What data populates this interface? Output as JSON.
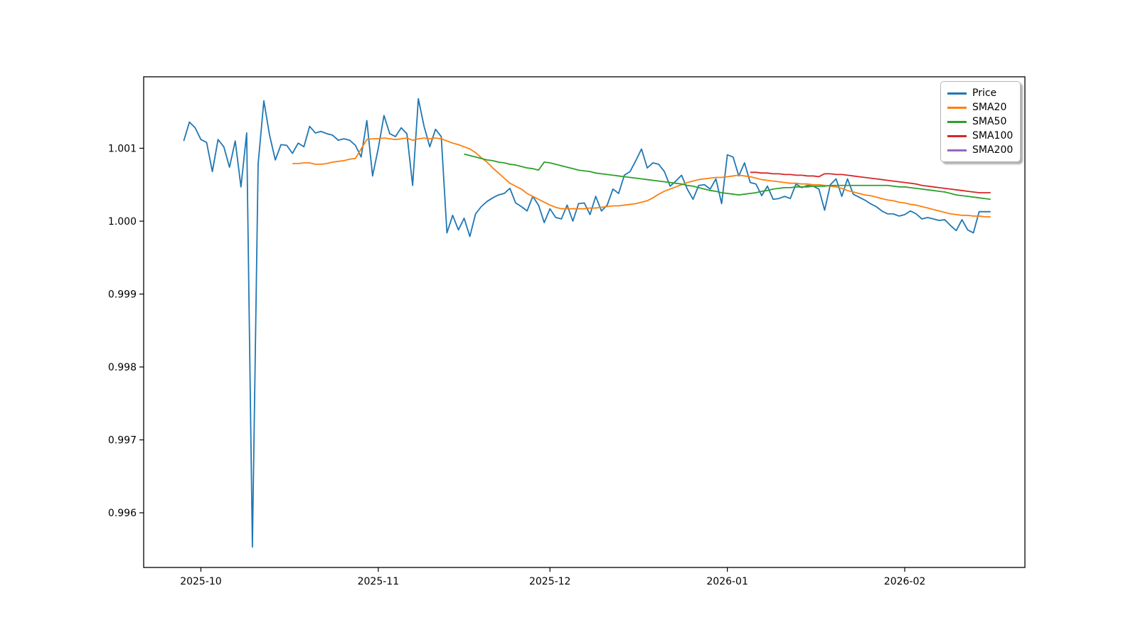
{
  "figure": {
    "background": "#ffffff",
    "title": ""
  },
  "chart_data": {
    "type": "line",
    "title": "",
    "xlabel": "",
    "ylabel": "",
    "grid": false,
    "x_axis": {
      "range": [
        "2025-09-21",
        "2026-02-22"
      ],
      "ticks": [
        {
          "label": "2025-10",
          "date": "2025-10-01"
        },
        {
          "label": "2025-11",
          "date": "2025-11-01"
        },
        {
          "label": "2025-12",
          "date": "2025-12-01"
        },
        {
          "label": "2026-01",
          "date": "2026-01-01"
        },
        {
          "label": "2026-02",
          "date": "2026-02-01"
        }
      ]
    },
    "y_axis": {
      "range": [
        0.99525,
        1.00198
      ],
      "ticks": [
        {
          "label": "0.996",
          "value": 0.996
        },
        {
          "label": "0.997",
          "value": 0.997
        },
        {
          "label": "0.998",
          "value": 0.998
        },
        {
          "label": "0.999",
          "value": 0.999
        },
        {
          "label": "1.000",
          "value": 1.0
        },
        {
          "label": "1.001",
          "value": 1.001
        }
      ]
    },
    "legend": {
      "position": "upper right"
    },
    "series": [
      {
        "name": "Price",
        "color": "#1f77b4",
        "start_date": "2025-09-28",
        "frequency": "daily",
        "values": [
          1.0011,
          1.00136,
          1.00128,
          1.00112,
          1.00108,
          1.00068,
          1.00112,
          1.00102,
          1.00074,
          1.0011,
          1.00047,
          1.00121,
          0.99553,
          1.00078,
          1.00165,
          1.00118,
          1.00084,
          1.00105,
          1.00104,
          1.00093,
          1.00107,
          1.00102,
          1.0013,
          1.00121,
          1.00123,
          1.0012,
          1.00118,
          1.00111,
          1.00113,
          1.00111,
          1.00104,
          1.00088,
          1.00138,
          1.00062,
          1.001,
          1.00145,
          1.0012,
          1.00116,
          1.00128,
          1.0012,
          1.00049,
          1.00168,
          1.0013,
          1.00102,
          1.00126,
          1.00116,
          0.99984,
          1.00008,
          0.99988,
          1.00004,
          0.99979,
          1.0001,
          1.0002,
          1.00027,
          1.00032,
          1.00036,
          1.00038,
          1.00045,
          1.00025,
          1.0002,
          1.00014,
          1.00034,
          1.00022,
          0.99998,
          1.00017,
          1.00005,
          1.00003,
          1.00022,
          1.0,
          1.00024,
          1.00025,
          1.00009,
          1.00034,
          1.00014,
          1.00022,
          1.00044,
          1.00038,
          1.00063,
          1.00068,
          1.00083,
          1.00099,
          1.00073,
          1.0008,
          1.00078,
          1.00068,
          1.00048,
          1.00055,
          1.00063,
          1.00044,
          1.0003,
          1.00049,
          1.0005,
          1.00044,
          1.00058,
          1.00024,
          1.00091,
          1.00088,
          1.00062,
          1.0008,
          1.00053,
          1.00051,
          1.00035,
          1.00048,
          1.0003,
          1.00031,
          1.00034,
          1.00031,
          1.00051,
          1.00046,
          1.00049,
          1.00048,
          1.00044,
          1.00015,
          1.0005,
          1.00058,
          1.00034,
          1.00058,
          1.00037,
          1.00033,
          1.00029,
          1.00024,
          1.0002,
          1.00014,
          1.0001,
          1.0001,
          1.00007,
          1.00009,
          1.00014,
          1.0001,
          1.00003,
          1.00005,
          1.00003,
          1.00001,
          1.00002,
          0.99994,
          0.99987,
          1.00002,
          0.99988,
          0.99984,
          1.00013,
          1.00013,
          1.00013
        ]
      },
      {
        "name": "SMA20",
        "color": "#ff7f0e",
        "start_date": "2025-10-17",
        "frequency": "daily",
        "values": [
          1.00079,
          1.00079,
          1.0008,
          1.0008,
          1.00078,
          1.00078,
          1.00079,
          1.00081,
          1.00082,
          1.00083,
          1.00085,
          1.00086,
          1.00099,
          1.00112,
          1.00113,
          1.00113,
          1.00114,
          1.00113,
          1.00112,
          1.00113,
          1.00114,
          1.00111,
          1.00113,
          1.00114,
          1.00113,
          1.00114,
          1.00113,
          1.0011,
          1.00107,
          1.00105,
          1.00102,
          1.00099,
          1.00094,
          1.00087,
          1.00081,
          1.00073,
          1.00066,
          1.00059,
          1.00052,
          1.00048,
          1.00044,
          1.00038,
          1.00034,
          1.0003,
          1.00026,
          1.00022,
          1.00019,
          1.00017,
          1.00017,
          1.00017,
          1.00017,
          1.00017,
          1.00018,
          1.00018,
          1.00019,
          1.0002,
          1.00021,
          1.00021,
          1.00022,
          1.00023,
          1.00024,
          1.00026,
          1.00028,
          1.00032,
          1.00037,
          1.00041,
          1.00044,
          1.00047,
          1.0005,
          1.00053,
          1.00055,
          1.00057,
          1.00058,
          1.00059,
          1.0006,
          1.0006,
          1.00061,
          1.00062,
          1.00063,
          1.00062,
          1.00061,
          1.00059,
          1.00057,
          1.00056,
          1.00055,
          1.00054,
          1.00053,
          1.00052,
          1.00052,
          1.00051,
          1.00051,
          1.0005,
          1.0005,
          1.00049,
          1.00048,
          1.00047,
          1.00045,
          1.00042,
          1.0004,
          1.00038,
          1.00036,
          1.00035,
          1.00033,
          1.00031,
          1.00029,
          1.00028,
          1.00026,
          1.00025,
          1.00023,
          1.00022,
          1.0002,
          1.00018,
          1.00016,
          1.00014,
          1.00012,
          1.0001,
          1.00009,
          1.00008,
          1.00008,
          1.00007,
          1.00007,
          1.00006,
          1.00006
        ]
      },
      {
        "name": "SMA50",
        "color": "#2ca02c",
        "start_date": "2025-11-16",
        "frequency": "daily",
        "values": [
          1.00092,
          1.0009,
          1.00088,
          1.00086,
          1.00084,
          1.00083,
          1.00081,
          1.0008,
          1.00078,
          1.00077,
          1.00075,
          1.00073,
          1.00072,
          1.0007,
          1.00081,
          1.0008,
          1.00078,
          1.00076,
          1.00074,
          1.00072,
          1.0007,
          1.00069,
          1.00068,
          1.00066,
          1.00065,
          1.00064,
          1.00063,
          1.00062,
          1.00061,
          1.0006,
          1.00059,
          1.00058,
          1.00057,
          1.00056,
          1.00055,
          1.00054,
          1.00053,
          1.00052,
          1.00051,
          1.00049,
          1.00048,
          1.00046,
          1.00044,
          1.00042,
          1.00041,
          1.00039,
          1.00038,
          1.00037,
          1.00036,
          1.00037,
          1.00038,
          1.00039,
          1.00041,
          1.00042,
          1.00044,
          1.00045,
          1.00046,
          1.00046,
          1.00047,
          1.00047,
          1.00047,
          1.00048,
          1.00048,
          1.00048,
          1.00049,
          1.00049,
          1.00049,
          1.00049,
          1.00049,
          1.00049,
          1.00049,
          1.00049,
          1.00049,
          1.00049,
          1.00049,
          1.00048,
          1.00047,
          1.00047,
          1.00046,
          1.00045,
          1.00044,
          1.00043,
          1.00042,
          1.00041,
          1.0004,
          1.00038,
          1.00036,
          1.00035,
          1.00034,
          1.00033,
          1.00032,
          1.00031,
          1.0003
        ]
      },
      {
        "name": "SMA100",
        "color": "#d62728",
        "start_date": "2026-01-05",
        "frequency": "daily",
        "values": [
          1.00067,
          1.00067,
          1.00066,
          1.00066,
          1.00065,
          1.00065,
          1.00064,
          1.00064,
          1.00063,
          1.00063,
          1.00062,
          1.00062,
          1.00061,
          1.00065,
          1.00065,
          1.00064,
          1.00064,
          1.00063,
          1.00062,
          1.00061,
          1.0006,
          1.00059,
          1.00058,
          1.00057,
          1.00056,
          1.00055,
          1.00054,
          1.00053,
          1.00052,
          1.00051,
          1.00049,
          1.00048,
          1.00047,
          1.00046,
          1.00045,
          1.00044,
          1.00043,
          1.00042,
          1.00041,
          1.0004,
          1.00039,
          1.00039,
          1.00039
        ]
      },
      {
        "name": "SMA200",
        "color": "#9467bd",
        "start_date": "",
        "frequency": "daily",
        "values": []
      }
    ]
  }
}
